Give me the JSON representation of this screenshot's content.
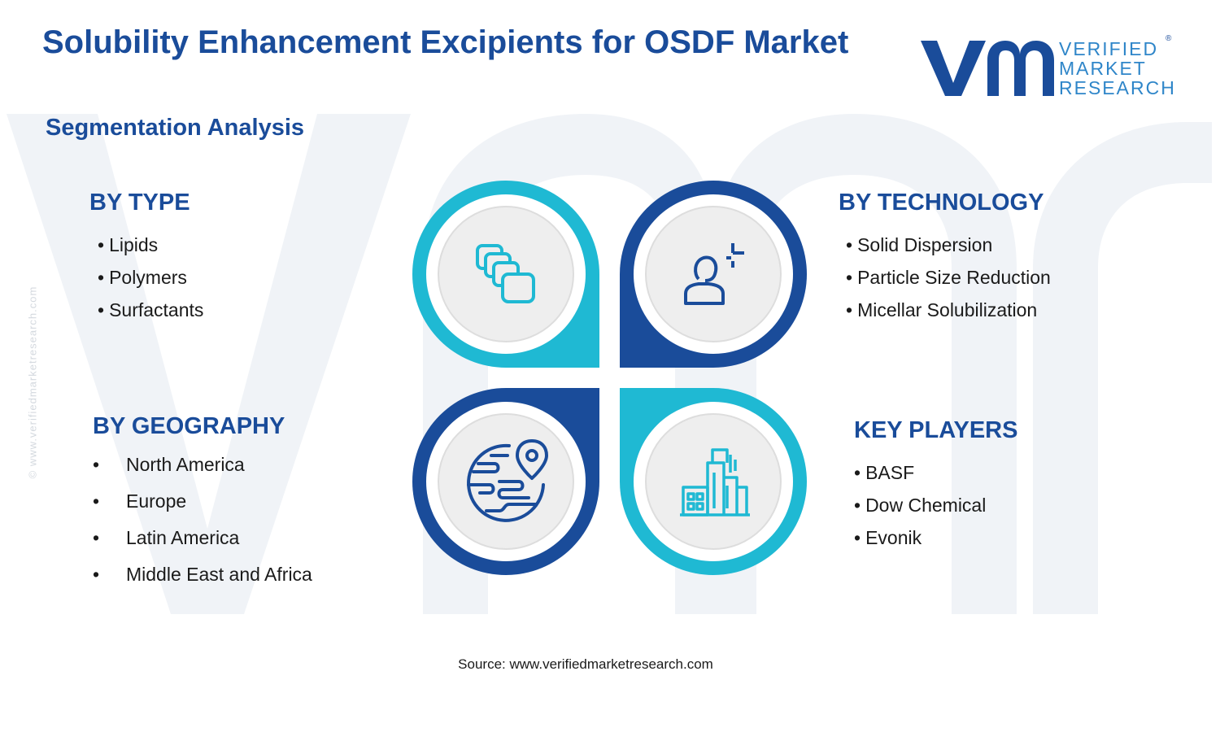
{
  "title": "Solubility Enhancement Excipients for OSDF Market",
  "subtitle": "Segmentation Analysis",
  "logo": {
    "lines": [
      "VERIFIED",
      "MARKET",
      "RESEARCH"
    ],
    "registered_mark": "®"
  },
  "watermark_copyright": "© www.verifiedmarketresearch.com",
  "bullet": "•",
  "colors": {
    "dark_blue": "#1a4c9a",
    "teal": "#1fb9d3",
    "watermark": "#f0f3f7",
    "circle_fill": "#eeeeee"
  },
  "sections": {
    "by_type": {
      "heading": "BY TYPE",
      "items": [
        "Lipids",
        "Polymers",
        "Surfactants"
      ],
      "icon": "stacked-layers-icon",
      "accent": "teal"
    },
    "by_technology": {
      "heading": "BY TECHNOLOGY",
      "items": [
        "Solid Dispersion",
        "Particle Size Reduction",
        "Micellar Solubilization"
      ],
      "icon": "person-innovation-icon",
      "accent": "dark_blue"
    },
    "by_geography": {
      "heading": "BY GEOGRAPHY",
      "items": [
        "North America",
        "Europe",
        "Latin America",
        "Middle East and Africa"
      ],
      "icon": "globe-location-icon",
      "accent": "dark_blue"
    },
    "key_players": {
      "heading": "KEY PLAYERS",
      "items": [
        "BASF",
        "Dow Chemical",
        "Evonik"
      ],
      "icon": "buildings-icon",
      "accent": "teal"
    }
  },
  "source": "Source: www.verifiedmarketresearch.com"
}
